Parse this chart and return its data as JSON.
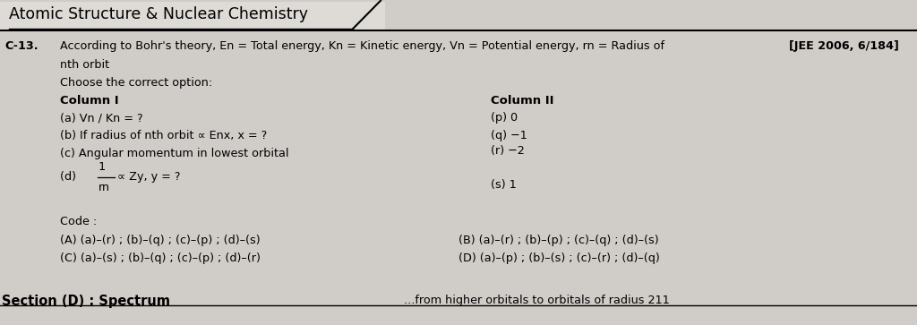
{
  "bg_color": "#d0ccc8",
  "title": "Atomic Structure & Nuclear Chemistry",
  "problem_number": "C-13.",
  "jee_ref": "[JEE 2006, 6/184]",
  "header_main": "According to Bohr's theory, En = Total energy, Kn = Kinetic energy, Vn = Potential energy, rn = Radius of",
  "header_cont": "nth orbit",
  "choose": "Choose the correct option:",
  "col1_header": "Column I",
  "col2_header": "Column II",
  "col1_a": "(a) Vn / Kn = ?",
  "col1_b": "(b) If radius of nth orbit ∝ Enx, x = ?",
  "col1_c": "(c) Angular momentum in lowest orbital",
  "col1_d_pre": "(d) ",
  "col1_d_post": "∝ Zy, y = ?",
  "col2_p": "(p) 0",
  "col2_q": "(q) −1",
  "col2_r": "(r) −2",
  "col2_s": "(s) 1",
  "code_label": "Code :",
  "optionA": "(A) (a)–(r) ; (b)–(q) ; (c)–(p) ; (d)–(s)",
  "optionB": "(B) (a)–(r) ; (b)–(p) ; (c)–(q) ; (d)–(s)",
  "optionC": "(C) (a)–(s) ; (b)–(q) ; (c)–(p) ; (d)–(r)",
  "optionD": "(D) (a)–(p) ; (b)–(s) ; (c)–(r) ; (d)–(q)",
  "section_label": "Section (D) : Spectrum",
  "bottom_right": "...from higher orbitals to orbitals of radius 211"
}
